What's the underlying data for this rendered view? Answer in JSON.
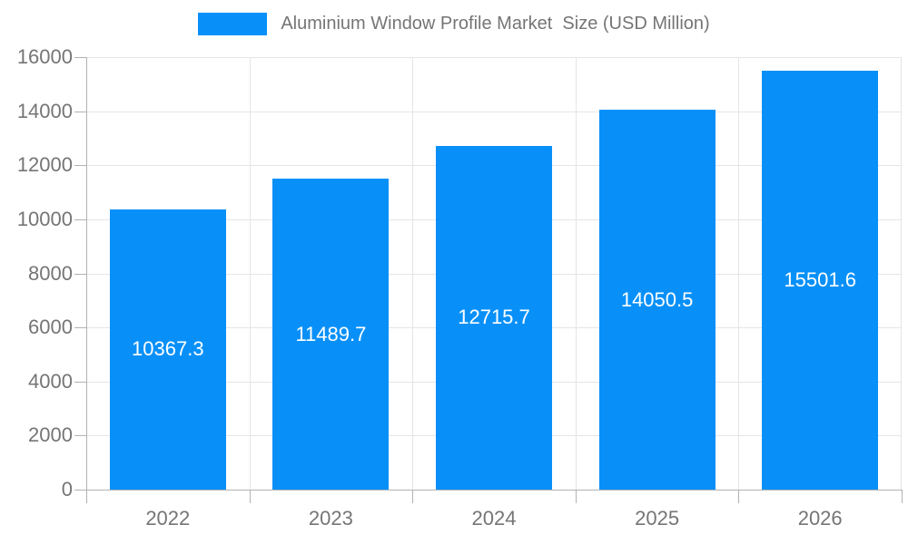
{
  "legend": {
    "label": "Aluminium Window Profile Market  Size (USD Million)",
    "swatch_color": "#0890F8"
  },
  "chart_data": {
    "type": "bar",
    "title": "Aluminium Window Profile Market  Size (USD Million)",
    "categories": [
      "2022",
      "2023",
      "2024",
      "2025",
      "2026"
    ],
    "series": [
      {
        "name": "Aluminium Window Profile Market  Size (USD Million)",
        "values": [
          10367.3,
          11489.7,
          12715.7,
          14050.5,
          15501.6
        ]
      }
    ],
    "value_labels": [
      "10367.3",
      "11489.7",
      "12715.7",
      "14050.5",
      "15501.6"
    ],
    "xlabel": "",
    "ylabel": "",
    "ylim": [
      0,
      16000
    ],
    "yticks": [
      0,
      2000,
      4000,
      6000,
      8000,
      10000,
      12000,
      14000,
      16000
    ],
    "grid": true,
    "legend_position": "top",
    "colors": {
      "bar": "#0890F8",
      "value_label_text": "#ffffff",
      "axis_line": "#b2b2b2",
      "tick_line": "#b2b2b2",
      "gridline": "#e5e5e5",
      "tick_label_text": "#757575",
      "background": "#ffffff"
    }
  }
}
